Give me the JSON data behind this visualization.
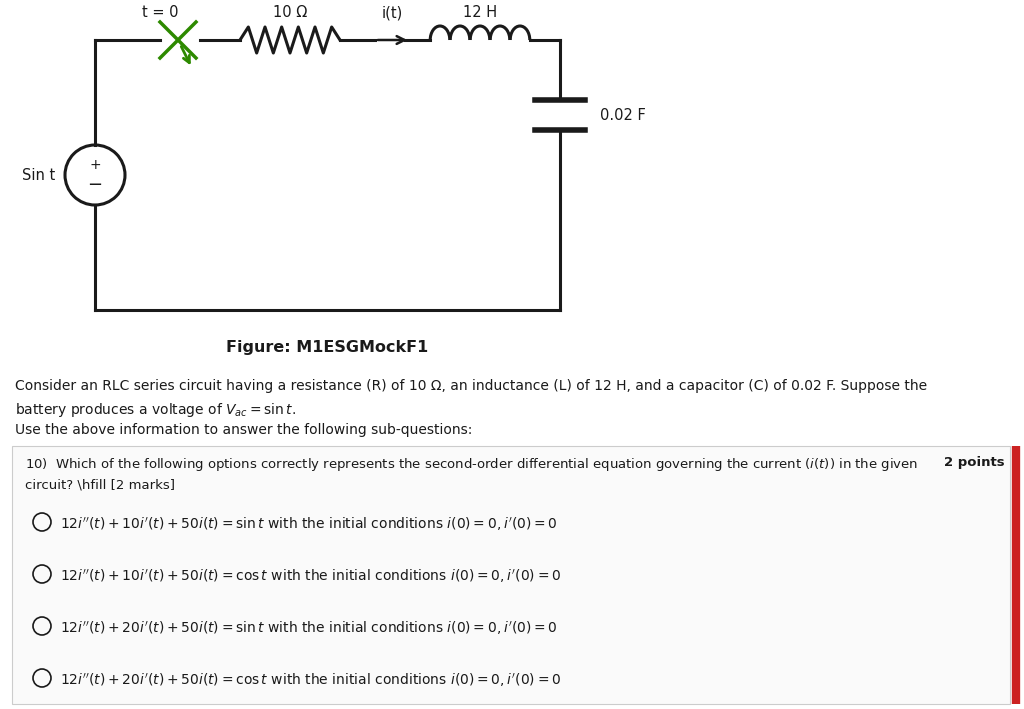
{
  "bg_color": "#ffffff",
  "fig_title": "Figure: M1ESGMockF1",
  "circuit": {
    "switch_label": "t = 0",
    "resistor_label": "10 Ω",
    "current_label": "i(t)",
    "inductor_label": "12 H",
    "capacitor_label": "0.02 F",
    "source_label": "Sin t"
  },
  "description_line1": "Consider an RLC series circuit having a resistance (R) of 10 Ω, an inductance (L) of 12 H, and a capacitor (C) of 0.02 F. Suppose the",
  "description_line2": "battery produces a voltage of $V_{ac} = \\sin t$.",
  "description_line3": "Use the above information to answer the following sub-questions:",
  "question_header": "10)  Which of the following options correctly represents the second-order differential equation governing the current $(i(t))$ in the given",
  "question_points": "2 points",
  "question_subtext": "circuit? \\hfill [2 marks]",
  "options": [
    "$12i''(t) + 10i'(t) + 50i(t) = \\sin t$ with the initial conditions $i(0) = 0, i'(0) = 0$",
    "$12i''(t) + 10i'(t) + 50i(t) = \\cos t$ with the initial conditions $i(0) = 0, i'(0) = 0$",
    "$12i''(t) + 20i'(t) + 50i(t) = \\sin t$ with the initial conditions $i(0) = 0, i'(0) = 0$",
    "$12i''(t) + 20i'(t) + 50i(t) = \\cos t$ with the initial conditions $i(0) = 0, i'(0) = 0$"
  ],
  "line_color": "#1a1a1a",
  "green_color": "#2d8a00",
  "text_color": "#1a1a1a"
}
